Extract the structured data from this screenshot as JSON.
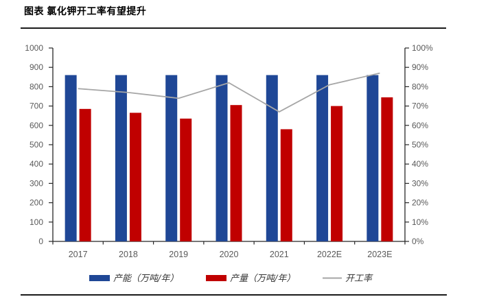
{
  "page": {
    "title": "图表 氯化钾开工率有望提升"
  },
  "chart_data": {
    "type": "bar",
    "subtype": "grouped-bars-with-line-overlay",
    "title": "氯化钾开工率有望提升",
    "categories": [
      "2017",
      "2018",
      "2019",
      "2020",
      "2021",
      "2022E",
      "2023E"
    ],
    "series": [
      {
        "name": "产能（万吨/年）",
        "type": "bar",
        "axis": "left",
        "color": "#1F4796",
        "values": [
          860,
          860,
          860,
          860,
          860,
          860,
          860
        ]
      },
      {
        "name": "产量（万吨/年）",
        "type": "bar",
        "axis": "left",
        "color": "#C00000",
        "values": [
          685,
          665,
          635,
          705,
          580,
          700,
          745
        ]
      },
      {
        "name": "开工率",
        "type": "line",
        "axis": "right",
        "color": "#A6A6A6",
        "values": [
          79,
          77,
          74,
          82,
          67,
          81,
          87
        ]
      }
    ],
    "left_axis": {
      "min": 0,
      "max": 1000,
      "step": 100,
      "tick_labels": [
        "0",
        "100",
        "200",
        "300",
        "400",
        "500",
        "600",
        "700",
        "800",
        "900",
        "1000"
      ]
    },
    "right_axis": {
      "min": 0,
      "max": 100,
      "step": 10,
      "tick_labels": [
        "0%",
        "10%",
        "20%",
        "30%",
        "40%",
        "50%",
        "60%",
        "70%",
        "80%",
        "90%",
        "100%"
      ]
    },
    "grid": false,
    "legend_position": "bottom",
    "colors": {
      "axis_line": "#262626",
      "tick_text": "#595959",
      "line_series": "#A6A6A6"
    }
  }
}
